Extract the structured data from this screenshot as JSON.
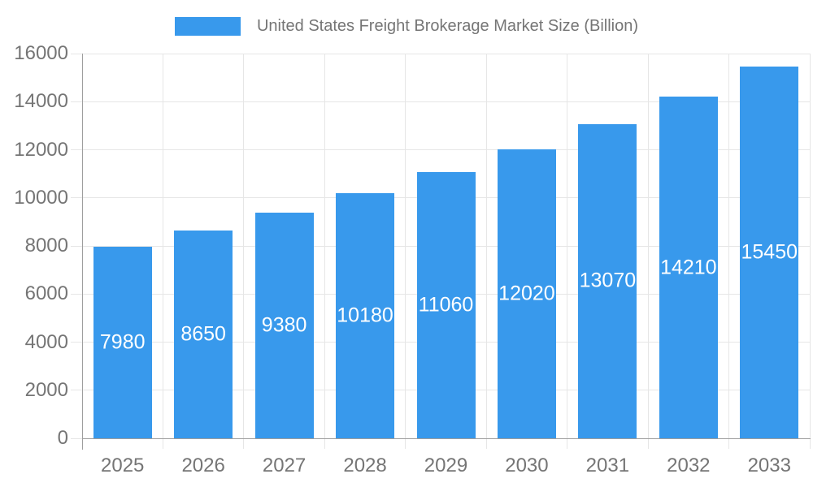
{
  "chart_data": {
    "type": "bar",
    "title": "United States Freight Brokerage Market Size (Billion)",
    "categories": [
      "2025",
      "2026",
      "2027",
      "2028",
      "2029",
      "2030",
      "2031",
      "2032",
      "2033"
    ],
    "values": [
      7980,
      8650,
      9380,
      10180,
      11060,
      12020,
      13070,
      14210,
      15450
    ],
    "value_labels": [
      "7980",
      "8650",
      "9380",
      "10180",
      "11060",
      "12020",
      "13070",
      "14210",
      "15450"
    ],
    "xlabel": "",
    "ylabel": "",
    "ylim": [
      0,
      16000
    ],
    "ytick_labels": [
      "0",
      "2000",
      "4000",
      "6000",
      "8000",
      "10000",
      "12000",
      "14000",
      "16000"
    ],
    "grid": true,
    "legend_position": "top",
    "value_label_position": "center-inside-bar",
    "colors": {
      "bar": "#3899EC",
      "axis_text": "#757575",
      "value_text": "#FFFFFF",
      "gridline": "#E6E6E6",
      "axis_line": "#9E9E9E"
    }
  }
}
